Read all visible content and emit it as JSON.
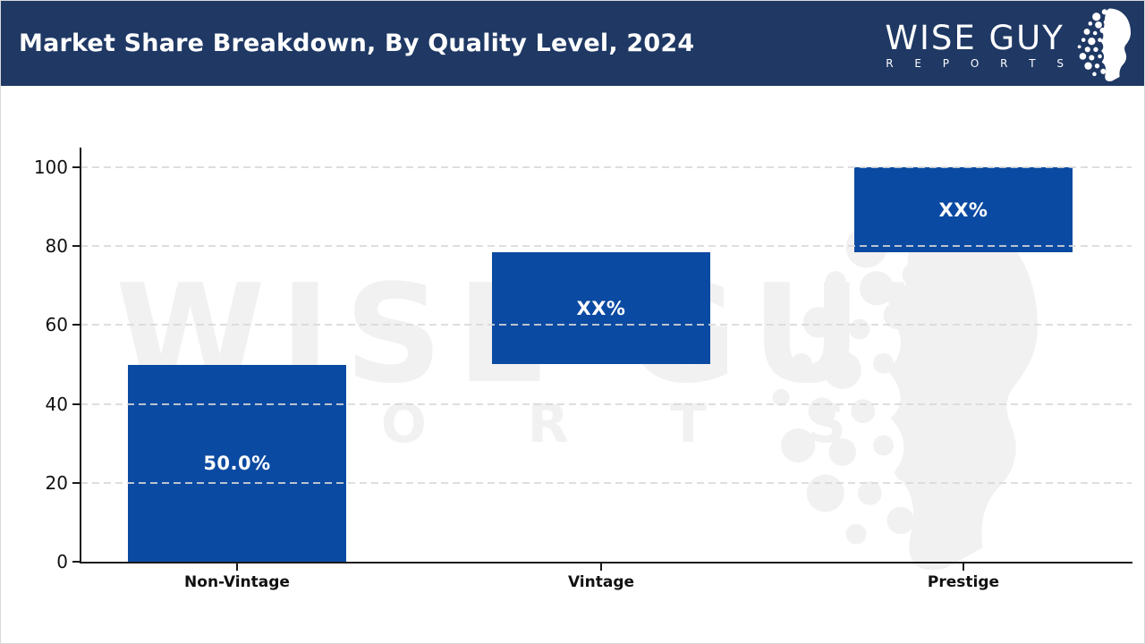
{
  "header": {
    "title": "Market Share Breakdown, By Quality Level, 2024",
    "logo": {
      "line1": "WISE GUY",
      "line2": "REPORTS"
    }
  },
  "watermark": {
    "line1": "WISE GUY",
    "line2": "PORTS"
  },
  "chart_data": {
    "type": "bar",
    "variant": "floating-segment-breakdown",
    "title": "Market Share Breakdown, By Quality Level, 2024",
    "categories": [
      "Non-Vintage",
      "Vintage",
      "Prestige"
    ],
    "segments": [
      {
        "category": "Non-Vintage",
        "start": 0,
        "end": 50,
        "label": "50.0%"
      },
      {
        "category": "Vintage",
        "start": 50,
        "end": 78.4,
        "label": "XX%"
      },
      {
        "category": "Prestige",
        "start": 78.4,
        "end": 100,
        "label": "XX%"
      }
    ],
    "ylim": [
      0,
      100
    ],
    "yticks": [
      0,
      20,
      40,
      60,
      80,
      100
    ],
    "grid": true,
    "legend": false,
    "xlabel": "",
    "ylabel": ""
  },
  "colors": {
    "header_bg": "#1f3864",
    "bar": "#0b4aa2",
    "bar_label": "#ffffff",
    "grid": "#d8d8d8",
    "axis": "#1a1a1a",
    "watermark": "#f1f1f1",
    "page_border": "#d9d9d9"
  }
}
